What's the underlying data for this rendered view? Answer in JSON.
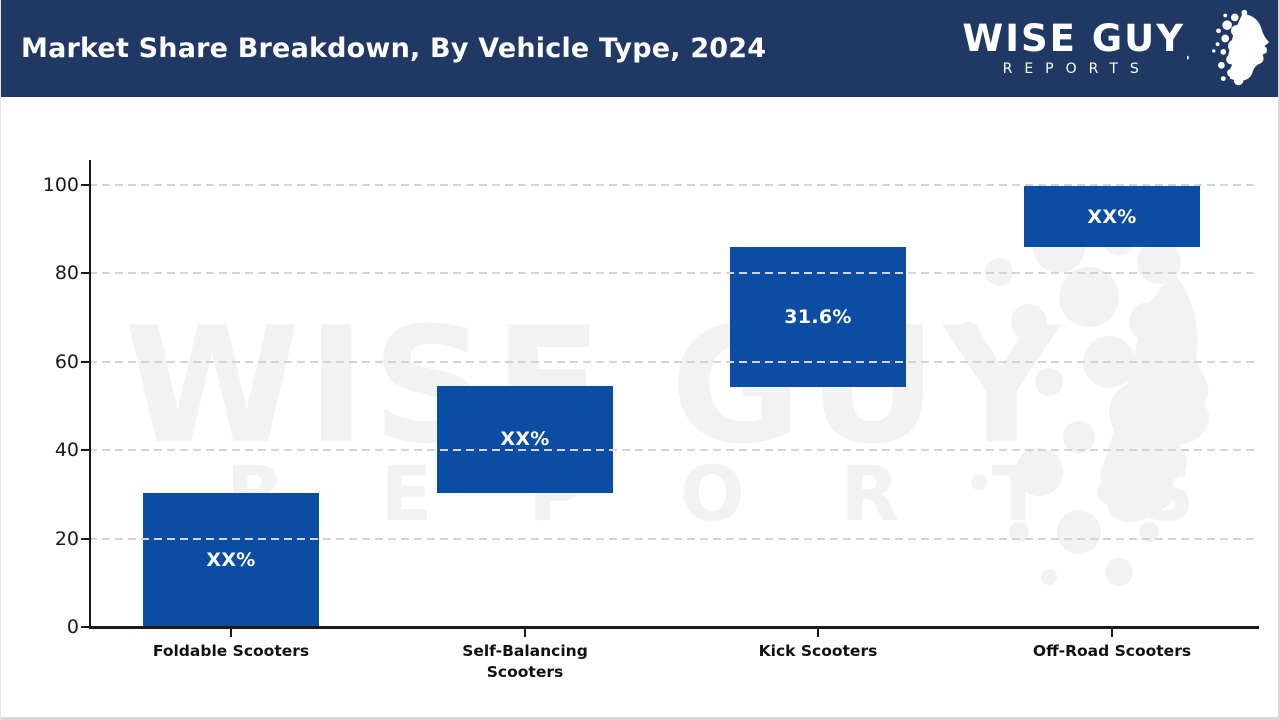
{
  "header": {
    "title": "Market Share Breakdown, By Vehicle Type, 2024",
    "bg_color": "#1f3864",
    "logo": {
      "line1": "WISE GUY",
      "line2": "REPORTS"
    }
  },
  "watermark": {
    "line1": "WISE GUY",
    "line2": "REPORTS"
  },
  "chart_data": {
    "type": "bar",
    "subtype": "waterfall-stacked-share",
    "title": "Market Share Breakdown, By Vehicle Type, 2024",
    "xlabel": "",
    "ylabel": "",
    "categories": [
      "Foldable Scooters",
      "Self-Balancing Scooters",
      "Kick Scooters",
      "Off-Road Scooters"
    ],
    "category_display_lines": [
      [
        "Foldable Scooters"
      ],
      [
        "Self-Balancing",
        "Scooters"
      ],
      [
        "Kick Scooters"
      ],
      [
        "Off-Road Scooters"
      ]
    ],
    "segments": [
      {
        "category": "Foldable Scooters",
        "start": 0,
        "end": 30.4,
        "label": "XX%"
      },
      {
        "category": "Self-Balancing Scooters",
        "start": 30.4,
        "end": 54.4,
        "label": "XX%"
      },
      {
        "category": "Kick Scooters",
        "start": 54.2,
        "end": 85.8,
        "label": "31.6%"
      },
      {
        "category": "Off-Road Scooters",
        "start": 85.8,
        "end": 99.6,
        "label": "XX%"
      }
    ],
    "yticks": [
      0,
      20,
      40,
      60,
      80,
      100
    ],
    "ylim": [
      0,
      106
    ],
    "grid": "horizontal-dashed",
    "legend": "none",
    "bar_color": "#0b4da2",
    "bar_label_color": "#ffffff",
    "grid_color": "#d4d4d4",
    "axis_color": "#1a1a1a"
  }
}
